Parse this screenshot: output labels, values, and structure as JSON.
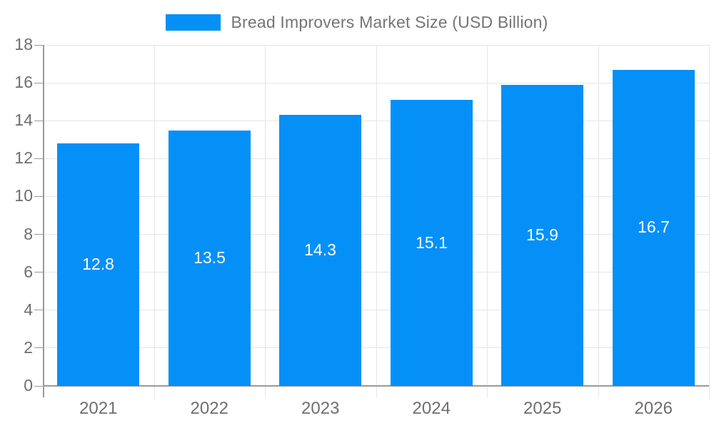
{
  "legend": {
    "label": "Bread Improvers Market Size (USD Billion)"
  },
  "colors": {
    "bar": "#0590f8",
    "legend_text": "#757575",
    "axis_text": "#6e6e6e",
    "grid": "#e6e6e6",
    "axis_line": "#9a9a9a",
    "value_label": "#ffffff"
  },
  "chart_data": {
    "type": "bar",
    "title": "Bread Improvers Market Size (USD Billion)",
    "categories": [
      "2021",
      "2022",
      "2023",
      "2024",
      "2025",
      "2026"
    ],
    "values": [
      12.8,
      13.5,
      14.3,
      15.1,
      15.9,
      16.7
    ],
    "bar_labels": [
      "12.8",
      "13.5",
      "14.3",
      "15.1",
      "15.9",
      "16.7"
    ],
    "xlabel": "",
    "ylabel": "",
    "ylim": [
      0,
      18
    ],
    "yticks": [
      0,
      2,
      4,
      6,
      8,
      10,
      12,
      14,
      16,
      18
    ],
    "grid": true,
    "legend_position": "top",
    "value_labels_inside_bars": true
  }
}
